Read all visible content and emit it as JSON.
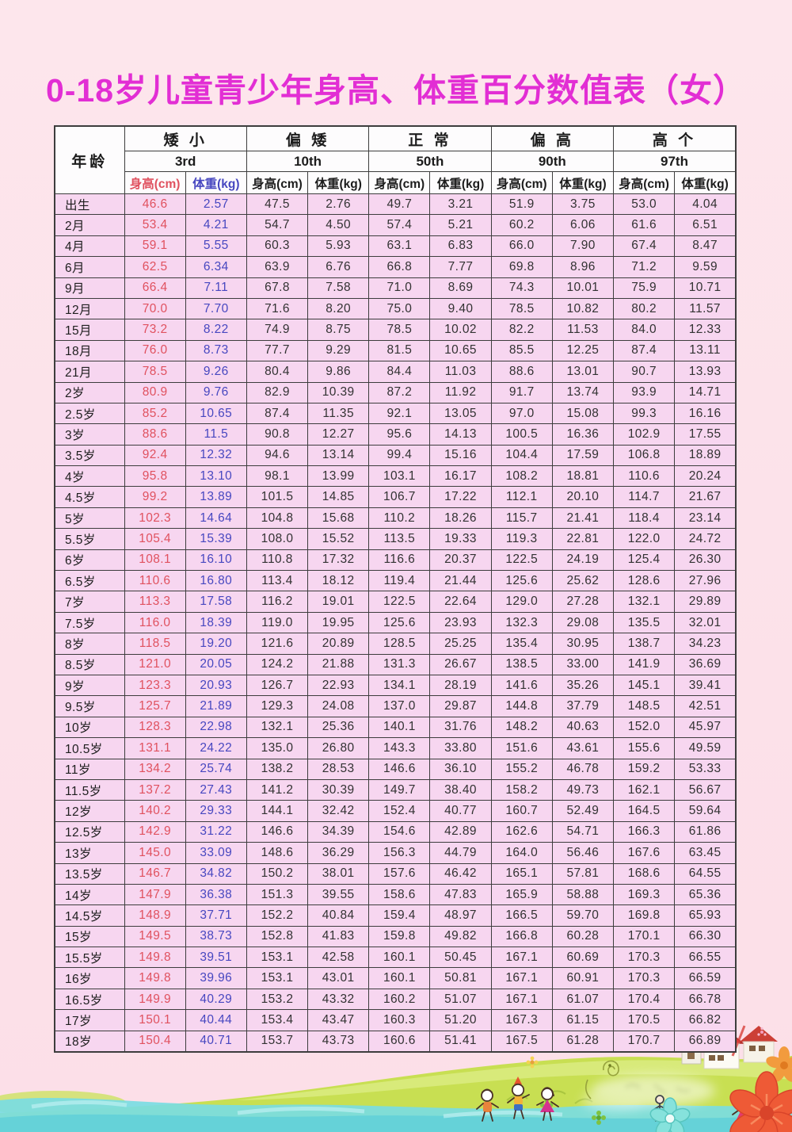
{
  "page": {
    "title": "0-18岁儿童青少年身高、体重百分数值表（女）"
  },
  "colors": {
    "page_background": "#fce2e9",
    "title_magenta": "#e22ed4",
    "row_background": "#f7d6f0",
    "height_3rd_red": "#e0515f",
    "weight_3rd_blue": "#4747c0",
    "table_line": "#3d3d3d"
  },
  "icons": {
    "bottom": [
      "grass-hill",
      "water-wash",
      "children-figures",
      "houses",
      "orange-flower",
      "cyan-flower",
      "swirl-doodle"
    ]
  },
  "table": {
    "age_header": "年龄",
    "groups": [
      {
        "label": "矮 小",
        "percentile": "3rd"
      },
      {
        "label": "偏 矮",
        "percentile": "10th"
      },
      {
        "label": "正 常",
        "percentile": "50th"
      },
      {
        "label": "偏 高",
        "percentile": "90th"
      },
      {
        "label": "高 个",
        "percentile": "97th"
      }
    ],
    "sub_headers": {
      "height": "身高(cm)",
      "weight": "体重(kg)"
    },
    "rows": [
      {
        "age": "出生",
        "values": [
          "46.6",
          "2.57",
          "47.5",
          "2.76",
          "49.7",
          "3.21",
          "51.9",
          "3.75",
          "53.0",
          "4.04"
        ]
      },
      {
        "age": "2月",
        "values": [
          "53.4",
          "4.21",
          "54.7",
          "4.50",
          "57.4",
          "5.21",
          "60.2",
          "6.06",
          "61.6",
          "6.51"
        ]
      },
      {
        "age": "4月",
        "values": [
          "59.1",
          "5.55",
          "60.3",
          "5.93",
          "63.1",
          "6.83",
          "66.0",
          "7.90",
          "67.4",
          "8.47"
        ]
      },
      {
        "age": "6月",
        "values": [
          "62.5",
          "6.34",
          "63.9",
          "6.76",
          "66.8",
          "7.77",
          "69.8",
          "8.96",
          "71.2",
          "9.59"
        ]
      },
      {
        "age": "9月",
        "values": [
          "66.4",
          "7.11",
          "67.8",
          "7.58",
          "71.0",
          "8.69",
          "74.3",
          "10.01",
          "75.9",
          "10.71"
        ]
      },
      {
        "age": "12月",
        "values": [
          "70.0",
          "7.70",
          "71.6",
          "8.20",
          "75.0",
          "9.40",
          "78.5",
          "10.82",
          "80.2",
          "11.57"
        ]
      },
      {
        "age": "15月",
        "values": [
          "73.2",
          "8.22",
          "74.9",
          "8.75",
          "78.5",
          "10.02",
          "82.2",
          "11.53",
          "84.0",
          "12.33"
        ]
      },
      {
        "age": "18月",
        "values": [
          "76.0",
          "8.73",
          "77.7",
          "9.29",
          "81.5",
          "10.65",
          "85.5",
          "12.25",
          "87.4",
          "13.11"
        ]
      },
      {
        "age": "21月",
        "values": [
          "78.5",
          "9.26",
          "80.4",
          "9.86",
          "84.4",
          "11.03",
          "88.6",
          "13.01",
          "90.7",
          "13.93"
        ]
      },
      {
        "age": "2岁",
        "values": [
          "80.9",
          "9.76",
          "82.9",
          "10.39",
          "87.2",
          "11.92",
          "91.7",
          "13.74",
          "93.9",
          "14.71"
        ]
      },
      {
        "age": "2.5岁",
        "values": [
          "85.2",
          "10.65",
          "87.4",
          "11.35",
          "92.1",
          "13.05",
          "97.0",
          "15.08",
          "99.3",
          "16.16"
        ]
      },
      {
        "age": "3岁",
        "values": [
          "88.6",
          "11.5",
          "90.8",
          "12.27",
          "95.6",
          "14.13",
          "100.5",
          "16.36",
          "102.9",
          "17.55"
        ]
      },
      {
        "age": "3.5岁",
        "values": [
          "92.4",
          "12.32",
          "94.6",
          "13.14",
          "99.4",
          "15.16",
          "104.4",
          "17.59",
          "106.8",
          "18.89"
        ]
      },
      {
        "age": "4岁",
        "values": [
          "95.8",
          "13.10",
          "98.1",
          "13.99",
          "103.1",
          "16.17",
          "108.2",
          "18.81",
          "110.6",
          "20.24"
        ]
      },
      {
        "age": "4.5岁",
        "values": [
          "99.2",
          "13.89",
          "101.5",
          "14.85",
          "106.7",
          "17.22",
          "112.1",
          "20.10",
          "114.7",
          "21.67"
        ]
      },
      {
        "age": "5岁",
        "values": [
          "102.3",
          "14.64",
          "104.8",
          "15.68",
          "110.2",
          "18.26",
          "115.7",
          "21.41",
          "118.4",
          "23.14"
        ]
      },
      {
        "age": "5.5岁",
        "values": [
          "105.4",
          "15.39",
          "108.0",
          "15.52",
          "113.5",
          "19.33",
          "119.3",
          "22.81",
          "122.0",
          "24.72"
        ]
      },
      {
        "age": "6岁",
        "values": [
          "108.1",
          "16.10",
          "110.8",
          "17.32",
          "116.6",
          "20.37",
          "122.5",
          "24.19",
          "125.4",
          "26.30"
        ]
      },
      {
        "age": "6.5岁",
        "values": [
          "110.6",
          "16.80",
          "113.4",
          "18.12",
          "119.4",
          "21.44",
          "125.6",
          "25.62",
          "128.6",
          "27.96"
        ]
      },
      {
        "age": "7岁",
        "values": [
          "113.3",
          "17.58",
          "116.2",
          "19.01",
          "122.5",
          "22.64",
          "129.0",
          "27.28",
          "132.1",
          "29.89"
        ]
      },
      {
        "age": "7.5岁",
        "values": [
          "116.0",
          "18.39",
          "119.0",
          "19.95",
          "125.6",
          "23.93",
          "132.3",
          "29.08",
          "135.5",
          "32.01"
        ]
      },
      {
        "age": "8岁",
        "values": [
          "118.5",
          "19.20",
          "121.6",
          "20.89",
          "128.5",
          "25.25",
          "135.4",
          "30.95",
          "138.7",
          "34.23"
        ]
      },
      {
        "age": "8.5岁",
        "values": [
          "121.0",
          "20.05",
          "124.2",
          "21.88",
          "131.3",
          "26.67",
          "138.5",
          "33.00",
          "141.9",
          "36.69"
        ]
      },
      {
        "age": "9岁",
        "values": [
          "123.3",
          "20.93",
          "126.7",
          "22.93",
          "134.1",
          "28.19",
          "141.6",
          "35.26",
          "145.1",
          "39.41"
        ]
      },
      {
        "age": "9.5岁",
        "values": [
          "125.7",
          "21.89",
          "129.3",
          "24.08",
          "137.0",
          "29.87",
          "144.8",
          "37.79",
          "148.5",
          "42.51"
        ]
      },
      {
        "age": "10岁",
        "values": [
          "128.3",
          "22.98",
          "132.1",
          "25.36",
          "140.1",
          "31.76",
          "148.2",
          "40.63",
          "152.0",
          "45.97"
        ]
      },
      {
        "age": "10.5岁",
        "values": [
          "131.1",
          "24.22",
          "135.0",
          "26.80",
          "143.3",
          "33.80",
          "151.6",
          "43.61",
          "155.6",
          "49.59"
        ]
      },
      {
        "age": "11岁",
        "values": [
          "134.2",
          "25.74",
          "138.2",
          "28.53",
          "146.6",
          "36.10",
          "155.2",
          "46.78",
          "159.2",
          "53.33"
        ]
      },
      {
        "age": "11.5岁",
        "values": [
          "137.2",
          "27.43",
          "141.2",
          "30.39",
          "149.7",
          "38.40",
          "158.2",
          "49.73",
          "162.1",
          "56.67"
        ]
      },
      {
        "age": "12岁",
        "values": [
          "140.2",
          "29.33",
          "144.1",
          "32.42",
          "152.4",
          "40.77",
          "160.7",
          "52.49",
          "164.5",
          "59.64"
        ]
      },
      {
        "age": "12.5岁",
        "values": [
          "142.9",
          "31.22",
          "146.6",
          "34.39",
          "154.6",
          "42.89",
          "162.6",
          "54.71",
          "166.3",
          "61.86"
        ]
      },
      {
        "age": "13岁",
        "values": [
          "145.0",
          "33.09",
          "148.6",
          "36.29",
          "156.3",
          "44.79",
          "164.0",
          "56.46",
          "167.6",
          "63.45"
        ]
      },
      {
        "age": "13.5岁",
        "values": [
          "146.7",
          "34.82",
          "150.2",
          "38.01",
          "157.6",
          "46.42",
          "165.1",
          "57.81",
          "168.6",
          "64.55"
        ]
      },
      {
        "age": "14岁",
        "values": [
          "147.9",
          "36.38",
          "151.3",
          "39.55",
          "158.6",
          "47.83",
          "165.9",
          "58.88",
          "169.3",
          "65.36"
        ]
      },
      {
        "age": "14.5岁",
        "values": [
          "148.9",
          "37.71",
          "152.2",
          "40.84",
          "159.4",
          "48.97",
          "166.5",
          "59.70",
          "169.8",
          "65.93"
        ]
      },
      {
        "age": "15岁",
        "values": [
          "149.5",
          "38.73",
          "152.8",
          "41.83",
          "159.8",
          "49.82",
          "166.8",
          "60.28",
          "170.1",
          "66.30"
        ]
      },
      {
        "age": "15.5岁",
        "values": [
          "149.8",
          "39.51",
          "153.1",
          "42.58",
          "160.1",
          "50.45",
          "167.1",
          "60.69",
          "170.3",
          "66.55"
        ]
      },
      {
        "age": "16岁",
        "values": [
          "149.8",
          "39.96",
          "153.1",
          "43.01",
          "160.1",
          "50.81",
          "167.1",
          "60.91",
          "170.3",
          "66.59"
        ]
      },
      {
        "age": "16.5岁",
        "values": [
          "149.9",
          "40.29",
          "153.2",
          "43.32",
          "160.2",
          "51.07",
          "167.1",
          "61.07",
          "170.4",
          "66.78"
        ]
      },
      {
        "age": "17岁",
        "values": [
          "150.1",
          "40.44",
          "153.4",
          "43.47",
          "160.3",
          "51.20",
          "167.3",
          "61.15",
          "170.5",
          "66.82"
        ]
      },
      {
        "age": "18岁",
        "values": [
          "150.4",
          "40.71",
          "153.7",
          "43.73",
          "160.6",
          "51.41",
          "167.5",
          "61.28",
          "170.7",
          "66.89"
        ]
      }
    ]
  }
}
